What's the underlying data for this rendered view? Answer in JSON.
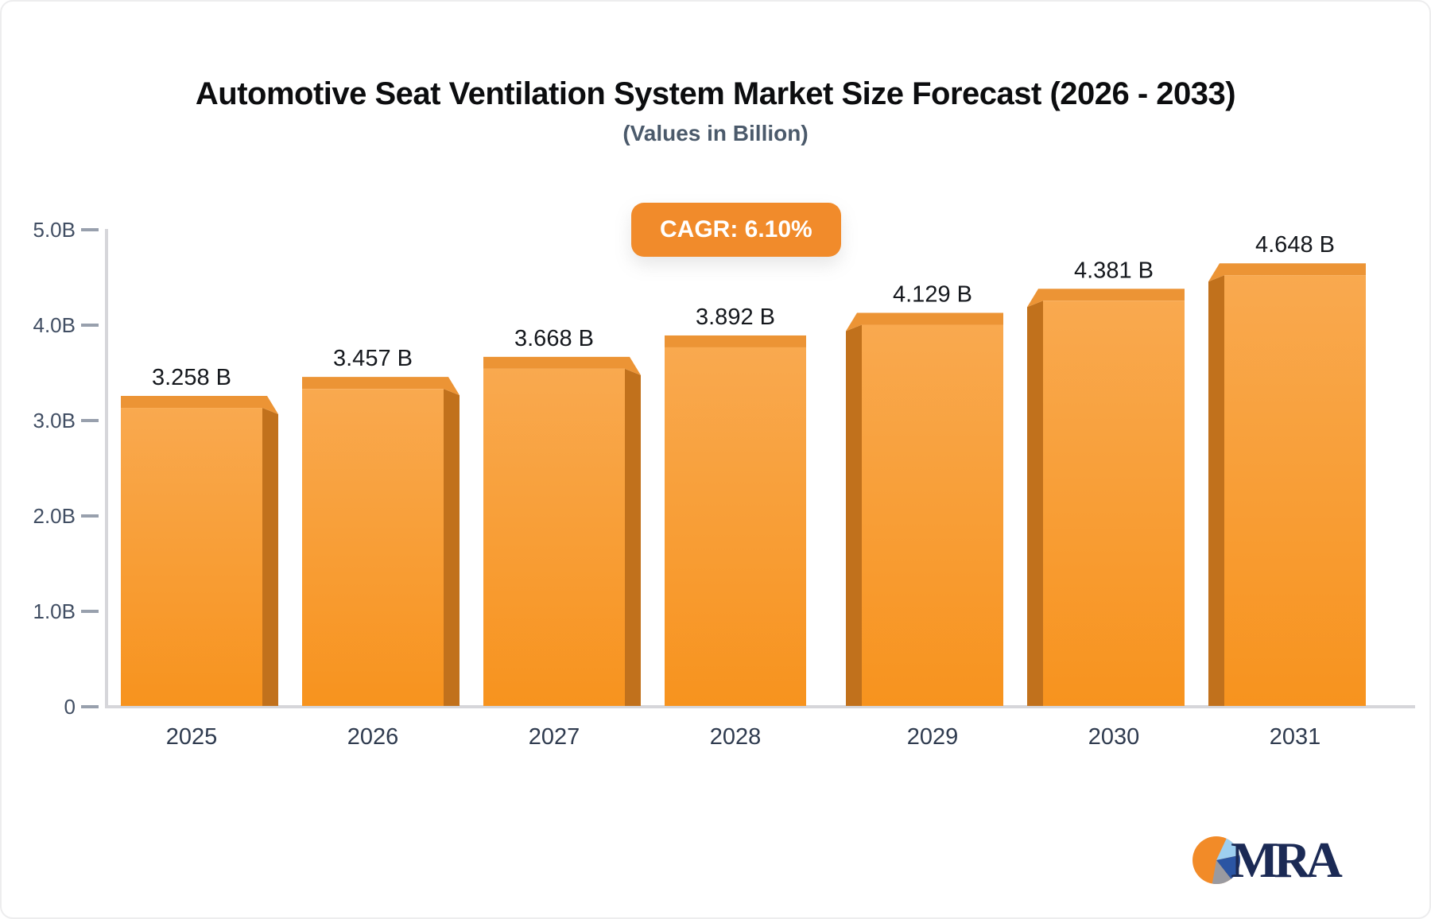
{
  "title": "Automotive Seat Ventilation System Market Size Forecast (2026 - 2033)",
  "subtitle": "(Values in Billion)",
  "cagr_badge": {
    "label": "CAGR: 6.10%",
    "bg": "#F18B2B",
    "text_color": "#FFFFFF"
  },
  "chart_data": {
    "type": "bar",
    "title": "Automotive Seat Ventilation System Market Size Forecast (2026 - 2033)",
    "subtitle": "(Values in Billion)",
    "categories": [
      "2025",
      "2026",
      "2027",
      "2028",
      "2029",
      "2030",
      "2031"
    ],
    "values": [
      3.258,
      3.457,
      3.668,
      3.892,
      4.129,
      4.381,
      4.648
    ],
    "bar_labels": [
      "3.258 B",
      "3.457 B",
      "3.668 B",
      "3.892 B",
      "4.129 B",
      "4.381 B",
      "4.648 B"
    ],
    "y_ticks": {
      "values": [
        5,
        4,
        3,
        2,
        1,
        0
      ],
      "labels": [
        "5.0B",
        "4.0B",
        "3.0B",
        "2.0B",
        "1.0B",
        "0"
      ]
    },
    "ylim": [
      0,
      5
    ],
    "xlabel": "",
    "ylabel": "",
    "grid": false,
    "legend": false,
    "colors": {
      "bar_front_top": "#F9A94F",
      "bar_front_bottom": "#F7931E",
      "bar_side": "#C1711C",
      "bar_cap": "#EC9435",
      "axis_line": "#D6D6DA",
      "tick_dash": "#98A0AD",
      "y_label": "#414E63",
      "x_label": "#2F3B4F",
      "bar_label": "#15181D"
    }
  },
  "logo": {
    "text": "MRA",
    "text_color": "#1B2A55",
    "pie": {
      "orange": "#F28B28",
      "light_blue": "#9ECFF0",
      "blue": "#2B55A3",
      "gray": "#9A9AA0"
    }
  }
}
